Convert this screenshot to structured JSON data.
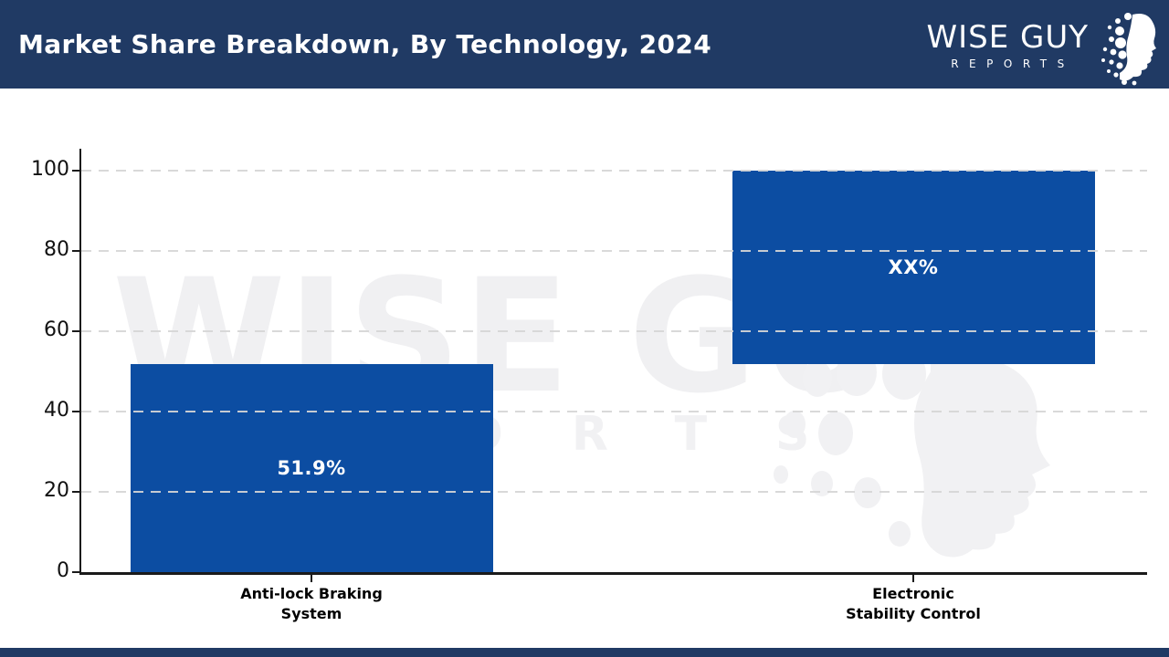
{
  "header": {
    "title": "Market Share Breakdown, By Technology, 2024",
    "logo": {
      "line1": "WISE GUY",
      "line2": "REPORTS"
    }
  },
  "watermark": {
    "line1": "WISE GUY",
    "line2": "REPORTS"
  },
  "chart_data": {
    "type": "bar",
    "subtype": "floating-waterfall",
    "title": "Market Share Breakdown, By Technology, 2024",
    "categories": [
      "Anti-lock Braking System",
      "Electronic Stability Control"
    ],
    "bars": [
      {
        "category_lines": [
          "Anti-lock Braking",
          "System"
        ],
        "start": 0,
        "end": 51.9,
        "value_label": "51.9%"
      },
      {
        "category_lines": [
          "Electronic",
          "Stability Control"
        ],
        "start": 51.9,
        "end": 100,
        "value_label": "XX%"
      }
    ],
    "yticks": [
      0,
      20,
      40,
      60,
      80,
      100
    ],
    "ylim": [
      0,
      105
    ],
    "xlabel": "",
    "ylabel": "",
    "grid": "horizontal-dashed-over-bars",
    "legend": "none",
    "bar_color": "#0c4da2",
    "value_label_color": "#ffffff",
    "grid_color": "#d6d6d6",
    "axis_color": "#1a1a1a"
  },
  "colors": {
    "header_bg": "#203a64",
    "footer_bg": "#203a64",
    "watermark": "#f0f0f2"
  }
}
